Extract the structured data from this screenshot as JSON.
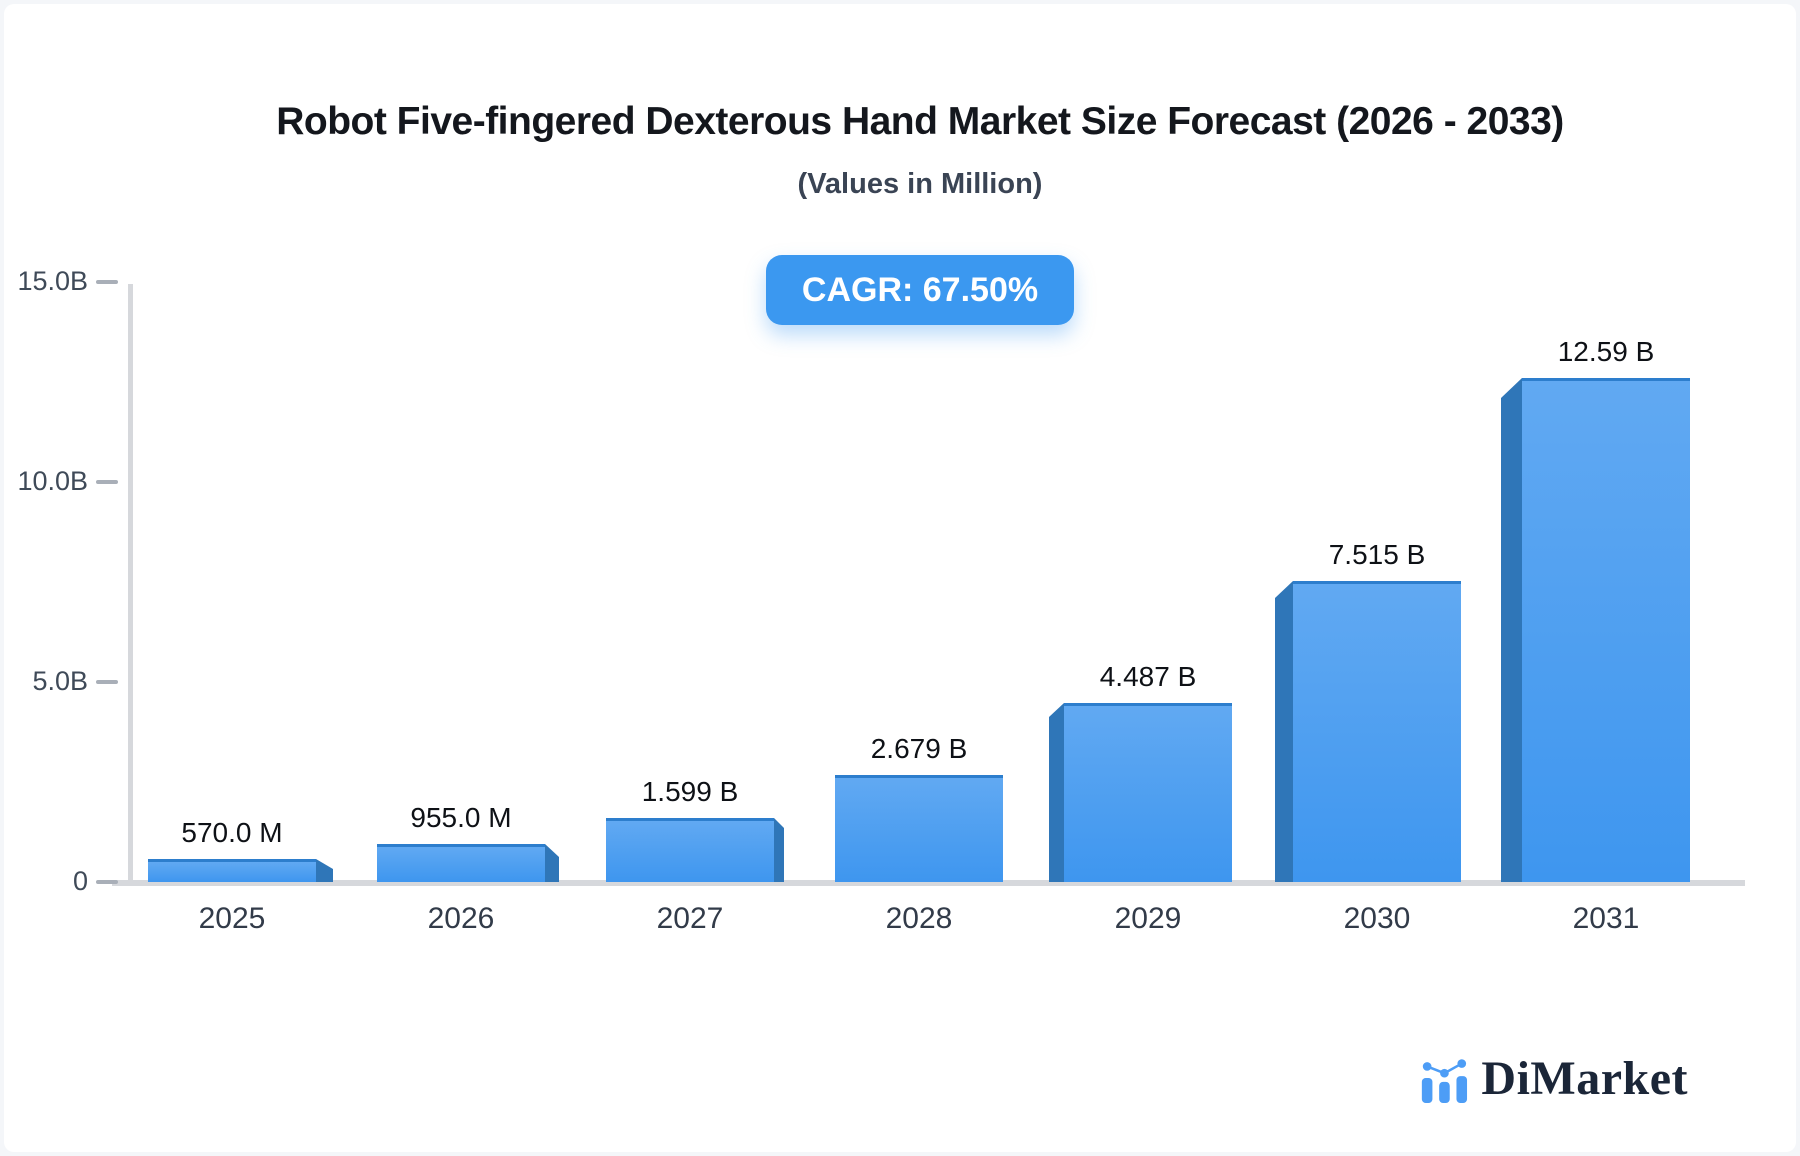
{
  "chart_data": {
    "type": "bar",
    "title": "Robot Five-fingered Dexterous Hand Market Size Forecast (2026 - 2033)",
    "subtitle": "(Values in Million)",
    "cagr_badge": "CAGR: 67.50%",
    "categories": [
      "2025",
      "2026",
      "2027",
      "2028",
      "2029",
      "2030",
      "2031"
    ],
    "values_billions": [
      0.57,
      0.955,
      1.599,
      2.679,
      4.487,
      7.515,
      12.59
    ],
    "value_labels": [
      "570.0 M",
      "955.0 M",
      "1.599 B",
      "2.679 B",
      "4.487 B",
      "7.515 B",
      "12.59 B"
    ],
    "xlabel": "",
    "ylabel": "",
    "ylim_billions": [
      0,
      15
    ],
    "yticks": [
      {
        "value": 0,
        "label": "0"
      },
      {
        "value": 5,
        "label": "5.0B"
      },
      {
        "value": 10,
        "label": "10.0B"
      },
      {
        "value": 15,
        "label": "15.0B"
      }
    ],
    "grid": false,
    "legend": "none",
    "bar_style_3d": true,
    "colors": {
      "badge_bg": "#3b98f0",
      "bar_face_top": "#61a9f2",
      "bar_face_bottom": "#3e96ef",
      "bar_top_edge": "#2d7ecd",
      "bar_side": "#2f76b8",
      "axis_line": "#d6d8dc",
      "tick_text": "#3f4a58",
      "value_text": "#0e1116",
      "category_text": "#323b49",
      "title_text": "#14171d",
      "subtitle_text": "#3a4454"
    }
  },
  "footer_logo": {
    "brand": "DiMarket",
    "icon": "mini-bar-line-chart-icon",
    "brand_color": "#1b2638",
    "icon_color": "#4d9df6"
  }
}
